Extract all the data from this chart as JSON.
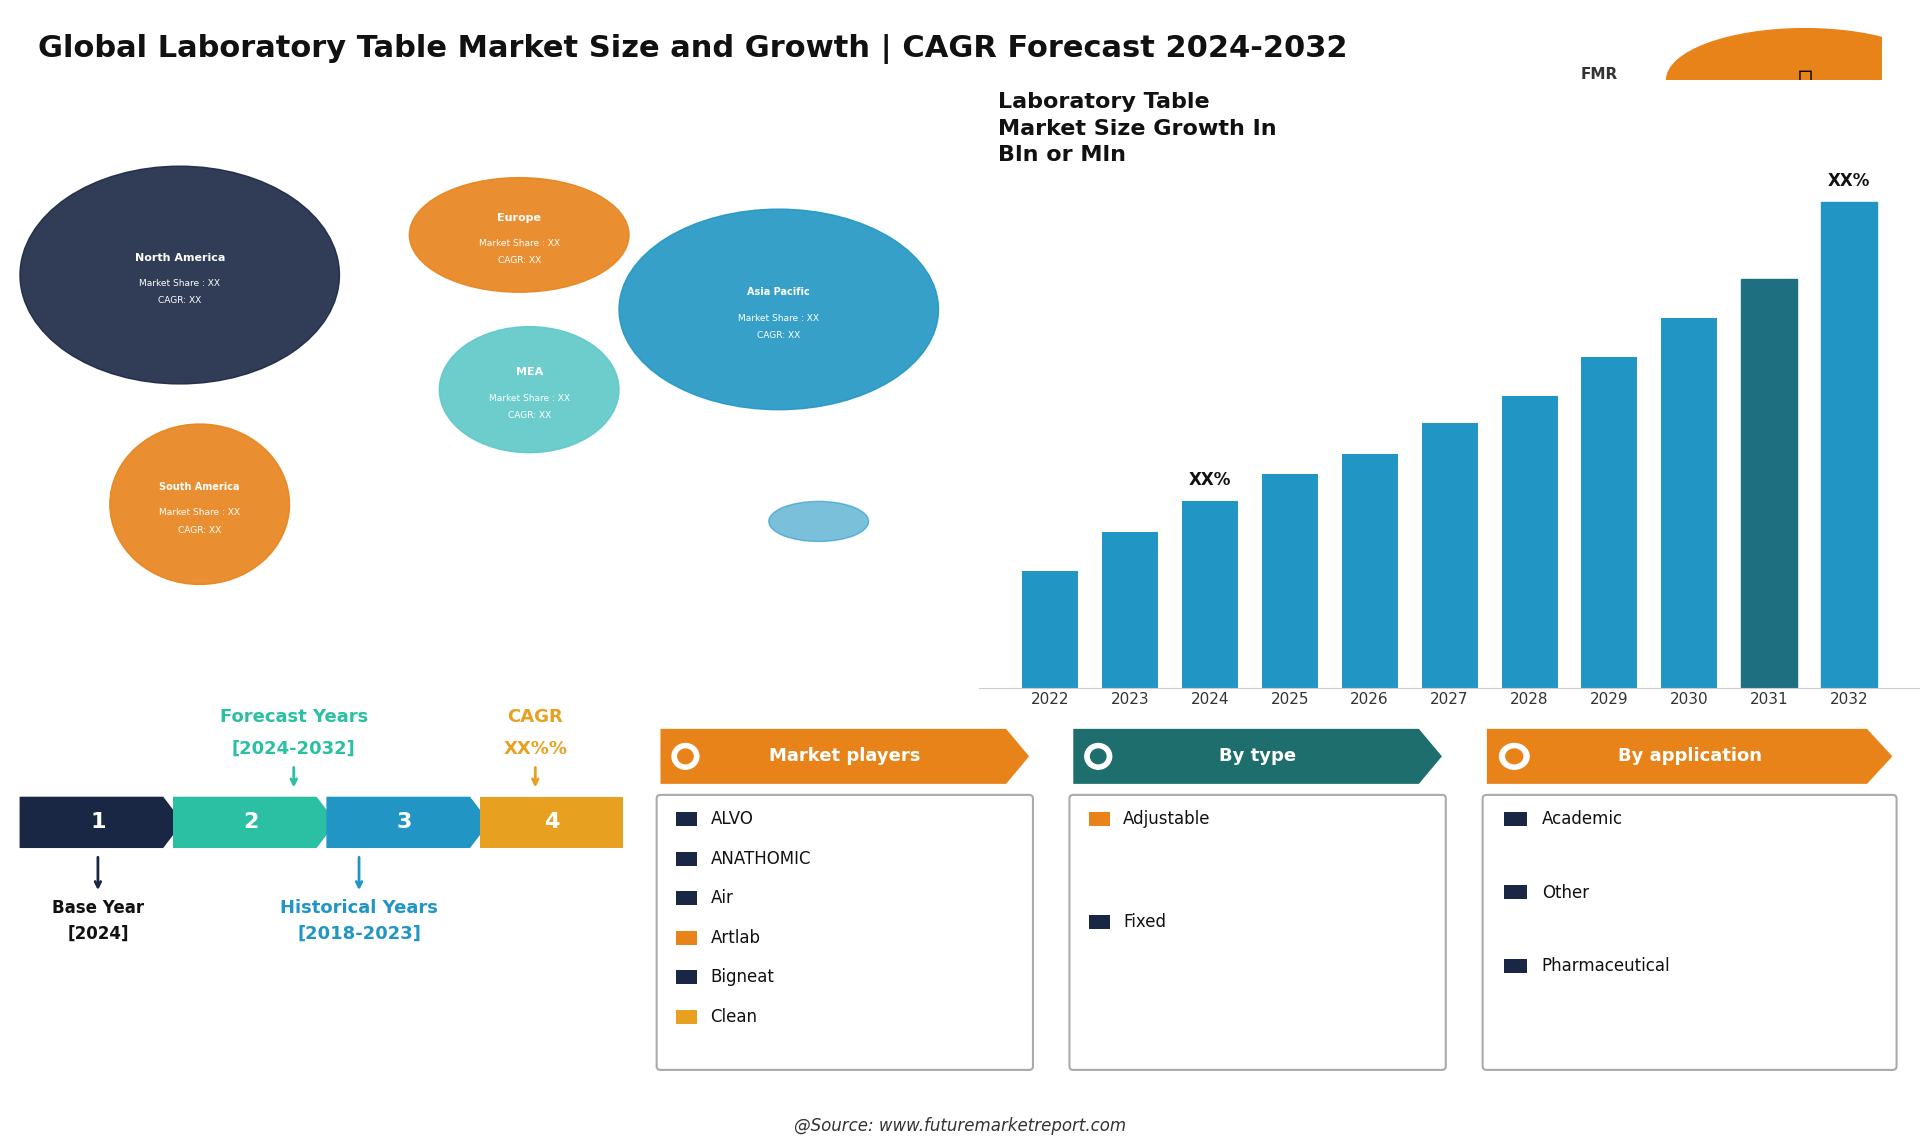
{
  "title": "Global Laboratory Table Market Size and Growth | CAGR Forecast 2024-2032",
  "title_fontsize": 22,
  "bar_chart_title": "Laboratory Table\nMarket Size Growth In\nBln or Mln",
  "bar_years": [
    "2022",
    "2023",
    "2024",
    "2025",
    "2026",
    "2027",
    "2028",
    "2029",
    "2030",
    "2031",
    "2032"
  ],
  "bar_values": [
    3,
    4,
    4.8,
    5.5,
    6.0,
    6.8,
    7.5,
    8.5,
    9.5,
    10.5,
    12.5
  ],
  "bar_color_main": "#2196C4",
  "bar_color_last": "#2e7d8e",
  "bar_annotation_2024": "XX%",
  "bar_annotation_2032": "XX%",
  "bar_bg": "#ffffff",
  "regions": {
    "North America": {
      "color": "#1a2744",
      "share": "XX",
      "cagr": "XX"
    },
    "Europe": {
      "color": "#E8831A",
      "share": "XX",
      "cagr": "XX"
    },
    "Asia Pacific": {
      "color": "#2196C4",
      "share": "XX",
      "cagr": "XX"
    },
    "MEA": {
      "color": "#5DC8C8",
      "share": "XX",
      "cagr": "XX"
    },
    "South America": {
      "color": "#E8831A",
      "share": "XX",
      "cagr": "XX"
    }
  },
  "timeline_items": [
    {
      "num": "1",
      "label": "Base Year\n[2024]",
      "color": "#1a2744",
      "text_color": "#ffffff"
    },
    {
      "num": "2",
      "label": "",
      "color": "#2bbfa4",
      "text_color": "#ffffff"
    },
    {
      "num": "3",
      "label": "",
      "color": "#2196C4",
      "text_color": "#ffffff"
    },
    {
      "num": "4",
      "label": "",
      "color": "#E8A020",
      "text_color": "#ffffff"
    }
  ],
  "forecast_label": "Forecast Years\n[2024-2032]",
  "forecast_color": "#2bbfa4",
  "historical_label": "Historical Years\n[2018-2023]",
  "historical_color": "#2196C4",
  "cagr_label": "CAGR\nXX%%",
  "cagr_color": "#E8A020",
  "market_players_title": "Market players",
  "market_players": [
    "ALVO",
    "ANATHOMIC",
    "Air",
    "Artlab",
    "Bigneat",
    "Clean"
  ],
  "market_players_colors": [
    "#1a2744",
    "#1a2744",
    "#1a2744",
    "#E8831A",
    "#1a2744",
    "#E8A020"
  ],
  "by_type_title": "By type",
  "by_type": [
    "Adjustable",
    "Fixed"
  ],
  "by_type_colors": [
    "#E8831A",
    "#1a2744"
  ],
  "by_application_title": "By application",
  "by_application": [
    "Academic",
    "Other",
    "Pharmaceutical"
  ],
  "by_application_colors": [
    "#1a2744",
    "#1a2744",
    "#1a2744"
  ],
  "source_text": "@Source: www.futuremarketreport.com",
  "orange": "#E8831A",
  "teal": "#1e6e6e",
  "bg_color": "#ffffff"
}
